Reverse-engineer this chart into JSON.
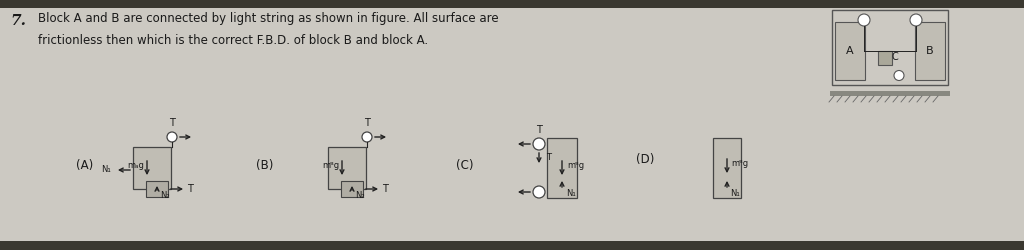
{
  "bg_color": "#ccc9c2",
  "text_color": "#1a1a1a",
  "question_number": "7.",
  "question_text_line1": "Block A and B are connected by light string as shown in figure. All surface are",
  "question_text_line2": "frictionless then which is the correct F.B.D. of block B and block A.",
  "options": [
    "(A)",
    "(B)",
    "(C)",
    "(D)"
  ],
  "box_face": "#c5c1b8",
  "box_edge": "#333333",
  "arrow_color": "#222222",
  "top_bar_color": "#3a3830",
  "bot_bar_color": "#3a3830"
}
